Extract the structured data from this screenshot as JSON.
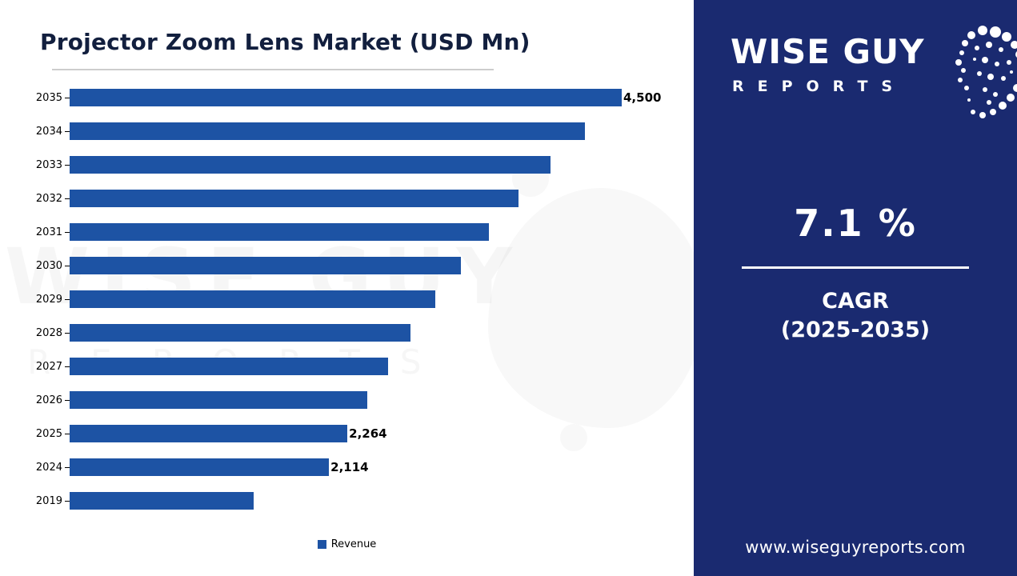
{
  "chart_data": {
    "type": "bar",
    "orientation": "horizontal",
    "title": "Projector Zoom Lens Market (USD Mn)",
    "categories": [
      "2035",
      "2034",
      "2033",
      "2032",
      "2031",
      "2030",
      "2029",
      "2028",
      "2027",
      "2026",
      "2025",
      "2024",
      "2019"
    ],
    "values": [
      4500,
      4197,
      3919,
      3659,
      3416,
      3190,
      2978,
      2781,
      2597,
      2425,
      2264,
      2114,
      1500
    ],
    "data_labels": {
      "2035": "4,500",
      "2025": "2,264",
      "2024": "2,114"
    },
    "series_name": "Revenue",
    "legend": [
      "Revenue"
    ],
    "legend_position": "bottom",
    "xlim": [
      0,
      4500
    ],
    "grid": false,
    "bar_color": "#1d53a4"
  },
  "sidebar": {
    "background_color": "#1a2a70",
    "logo": {
      "line1": "WISE GUY",
      "line2": "REPORTS"
    },
    "cagr": {
      "value": "7.1 %",
      "line1": "CAGR",
      "line2": "(2025-2035)"
    },
    "website": "www.wiseguyreports.com"
  },
  "watermark": {
    "line1": "WISE GUY",
    "line2": "REPORTS"
  }
}
